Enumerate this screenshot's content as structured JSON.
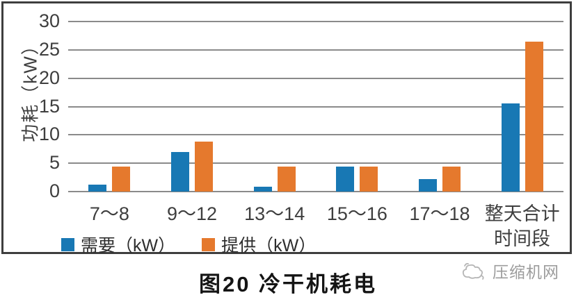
{
  "caption": "图20 冷干机耗电",
  "watermark": {
    "text": "压缩机网",
    "icon": "doodle-logo-icon"
  },
  "colors": {
    "demand_blue": "#1878b4",
    "supply_orange": "#e5792d",
    "gridline": "#8a8a8a",
    "frame": "#3e3e3e",
    "axis_text": "#3e3e3e",
    "watermark_text": "#9c9c9c"
  },
  "chart_data": {
    "type": "bar",
    "title": "",
    "ylabel": "功耗（kW）",
    "xlabel": "时间段",
    "ylim": [
      0,
      30
    ],
    "yticks": [
      0,
      5,
      10,
      15,
      20,
      25,
      30
    ],
    "grid": true,
    "legend_position": "bottom-left",
    "categories": [
      "7～8",
      "9～12",
      "13～14",
      "15～16",
      "17～18",
      "整天合计"
    ],
    "series": [
      {
        "name": "需要（kW）",
        "key": "demand",
        "color": "#1878b4",
        "values": [
          1.2,
          7.0,
          0.8,
          4.4,
          2.2,
          15.6
        ]
      },
      {
        "name": "提供（kW）",
        "key": "supply",
        "color": "#e5792d",
        "values": [
          4.4,
          8.8,
          4.4,
          4.4,
          4.4,
          26.4
        ]
      }
    ]
  }
}
